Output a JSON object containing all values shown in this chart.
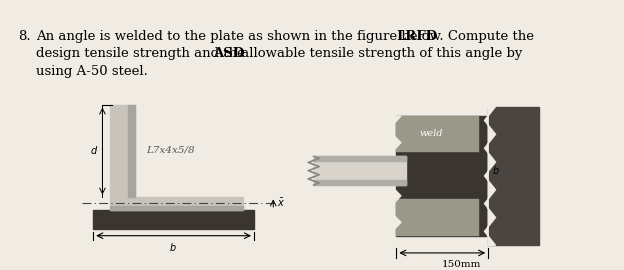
{
  "background_color": "#f0ece4",
  "text_color": "#1a1a1a",
  "dark_plate_color": "#3a3530",
  "angle_light": "#c8c4bc",
  "angle_mid": "#a8a4a0",
  "angle_dark": "#888480",
  "bar_light": "#d8d4cc",
  "bar_mid": "#b0aca8",
  "hatch_bg": "#9a9888",
  "right_plate_color": "#4a4540",
  "line1_normal": "An angle is welded to the plate as shown in the figure below. Compute the ",
  "line1_bold": "LRFD",
  "line2_normal1": "design tensile strength and the ",
  "line2_bold": "ASD",
  "line2_normal2": " allowable tensile strength of this angle by",
  "line3": "using A-50 steel.",
  "label_angle": "L7x4x5/8",
  "label_d": "d",
  "label_b": "b",
  "label_weld": "weld",
  "label_b2": "b",
  "label_150": "150mm",
  "label_xbar": "χ",
  "fontsize": 9.5,
  "fontsize_small": 7.0,
  "fontsize_label": 7.5
}
